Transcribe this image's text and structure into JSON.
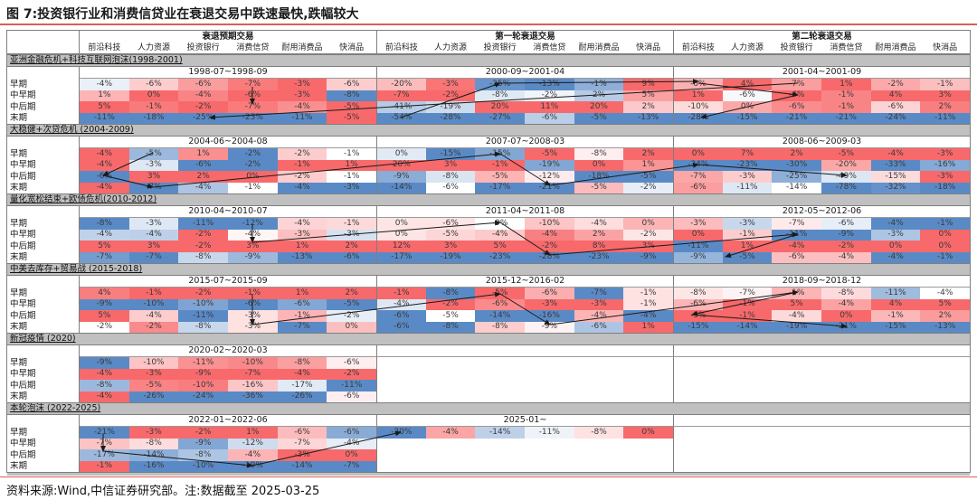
{
  "title": "图 7:投资银行业和消费信贷业在衰退交易中跌速最快,跌幅较大",
  "footer": "资料来源:Wind,中信证券研究部。注:数据截至 2025-03-25",
  "colors": {
    "accent_rule": "#d95f57",
    "heat_positive": "#f8696b",
    "heat_negative": "#5a8ac6",
    "section_band": "#c0c0c0",
    "border": "#7f7f7f"
  },
  "chart_data": {
    "type": "heatmap",
    "title": "图 7:投资银行业和消费信贷业在衰退交易中跌速最快,跌幅较大",
    "value_unit": "%",
    "groups": [
      "衰退预期交易",
      "第一轮衰退交易",
      "第二轮衰退交易"
    ],
    "columns": [
      "前沿科技",
      "人力资源",
      "投资银行",
      "消费信贷",
      "耐用消费品",
      "快消品"
    ],
    "row_labels": [
      "早期",
      "中早期",
      "中后期",
      "末期"
    ],
    "sections": [
      {
        "label": "亚洲金融危机+科技互联网泡沫(1998-2001)",
        "periods": [
          "1998-07~1998-09",
          "2000-09~2001-04",
          "2001-04~2001-09"
        ],
        "rows": [
          [
            [
              -4,
              -6,
              -6,
              -7,
              -3,
              -6
            ],
            [
              -20,
              -3,
              -25,
              -13,
              -1,
              9
            ],
            [
              -6,
              4,
              -7,
              1,
              -2,
              -1
            ]
          ],
          [
            [
              1,
              0,
              -4,
              -6,
              -3,
              -8
            ],
            [
              -7,
              -2,
              -8,
              -2,
              2,
              5
            ],
            [
              1,
              -6,
              -4,
              -1,
              4,
              3
            ]
          ],
          [
            [
              5,
              -1,
              -2,
              -7,
              -4,
              -5
            ],
            [
              -41,
              -19,
              20,
              11,
              20,
              2
            ],
            [
              -10,
              0,
              -6,
              -1,
              -6,
              2
            ]
          ],
          [
            [
              -11,
              -18,
              -25,
              -23,
              -11,
              -5
            ],
            [
              -54,
              -28,
              -27,
              -6,
              -5,
              -13
            ],
            [
              -28,
              -15,
              -21,
              -21,
              -24,
              -11
            ]
          ]
        ]
      },
      {
        "label": "大稳健+次贷危机 (2004-2009)",
        "periods": [
          "2004-06~2004-08",
          "2007-07~2008-03",
          "2008-06~2009-03"
        ],
        "rows": [
          [
            [
              -4,
              -5,
              1,
              -2,
              -2,
              -1
            ],
            [
              0,
              -15,
              -15,
              -5,
              -8,
              2
            ],
            [
              0,
              7,
              2,
              -5,
              -4,
              -3
            ]
          ],
          [
            [
              -4,
              -3,
              -6,
              -2,
              -1,
              1
            ],
            [
              20,
              3,
              -1,
              -19,
              0,
              1
            ],
            [
              -34,
              -23,
              -30,
              -20,
              -33,
              -16
            ]
          ],
          [
            [
              -6,
              3,
              2,
              0,
              -2,
              -1
            ],
            [
              -9,
              -8,
              -5,
              -12,
              -18,
              -5
            ],
            [
              -7,
              -3,
              -25,
              -49,
              -15,
              -3
            ]
          ],
          [
            [
              -4,
              -7,
              -4,
              -1,
              -4,
              -3
            ],
            [
              -14,
              -6,
              -17,
              -21,
              -5,
              -2
            ],
            [
              -6,
              -11,
              -14,
              -78,
              -32,
              -18
            ]
          ]
        ]
      },
      {
        "label": "量化宽松结束+欧债危机(2010-2012)",
        "periods": [
          "2010-04~2010-07",
          "2011-04~2011-08",
          "2012-05~2012-06"
        ],
        "rows": [
          [
            [
              -8,
              -3,
              -11,
              -12,
              -4,
              -1
            ],
            [
              0,
              -6,
              -9,
              -10,
              -4,
              0
            ],
            [
              -3,
              -3,
              -7,
              -6,
              -4,
              -1
            ]
          ],
          [
            [
              -4,
              -4,
              -2,
              -4,
              -3,
              -3
            ],
            [
              0,
              -5,
              -4,
              -4,
              2,
              -2
            ],
            [
              0,
              -1,
              -11,
              -9,
              -3,
              0
            ]
          ],
          [
            [
              5,
              3,
              -2,
              3,
              1,
              2
            ],
            [
              12,
              3,
              5,
              -2,
              8,
              3
            ],
            [
              -11,
              1,
              -4,
              -2,
              0,
              0
            ]
          ],
          [
            [
              -7,
              -7,
              -8,
              -9,
              -13,
              -6
            ],
            [
              -17,
              -19,
              -23,
              -28,
              -23,
              -9
            ],
            [
              -9,
              -5,
              -6,
              -4,
              -4,
              -1
            ]
          ]
        ]
      },
      {
        "label": "中美去库存+贸易战 (2015-2018)",
        "periods": [
          "2015-07~2015-09",
          "2015-12~2016-02",
          "2018-09~2018-12"
        ],
        "rows": [
          [
            [
              4,
              -1,
              -2,
              -1,
              1,
              2
            ],
            [
              -1,
              -8,
              -5,
              -6,
              -7,
              -1
            ],
            [
              -8,
              -7,
              -1,
              -8,
              -11,
              -4
            ]
          ],
          [
            [
              -9,
              -10,
              -10,
              -6,
              -6,
              -5
            ],
            [
              -4,
              -2,
              -6,
              -3,
              -3,
              -1
            ],
            [
              -6,
              -1,
              5,
              -4,
              4,
              5
            ]
          ],
          [
            [
              5,
              -4,
              -11,
              -3,
              -1,
              -2
            ],
            [
              -6,
              -5,
              -14,
              -16,
              -4,
              -4
            ],
            [
              -3,
              -1,
              -4,
              0,
              -1,
              2
            ]
          ],
          [
            [
              -2,
              -2,
              -8,
              -3,
              -7,
              0
            ],
            [
              -6,
              -8,
              -8,
              -9,
              -6,
              1
            ],
            [
              -15,
              -14,
              -19,
              -21,
              -15,
              -13
            ]
          ]
        ]
      },
      {
        "label": "新冠疫情 (2020)",
        "periods": [
          "2020-02~2020-03",
          null,
          null
        ],
        "rows": [
          [
            [
              -9,
              -10,
              -11,
              -10,
              -8,
              -6
            ],
            null,
            null
          ],
          [
            [
              -4,
              -3,
              -9,
              -7,
              -4,
              -2
            ],
            null,
            null
          ],
          [
            [
              -8,
              -5,
              -10,
              -16,
              -17,
              -11
            ],
            null,
            null
          ],
          [
            [
              -4,
              -26,
              -24,
              -36,
              -26,
              -6
            ],
            null,
            null
          ]
        ]
      },
      {
        "label": "本轮泡沫 (2022-2025)",
        "periods": [
          "2022-01~2022-06",
          "2025-01~",
          null
        ],
        "rows": [
          [
            [
              -21,
              -3,
              -2,
              1,
              -6,
              -6
            ],
            [
              -20,
              -4,
              -14,
              -11,
              -8,
              0
            ],
            null
          ],
          [
            [
              -7,
              -8,
              -9,
              -12,
              -7,
              -4
            ],
            null,
            null
          ],
          [
            [
              -17,
              -14,
              -8,
              -4,
              -3,
              0
            ],
            null,
            null
          ],
          [
            [
              -1,
              -16,
              -10,
              -19,
              -14,
              -7
            ],
            null,
            null
          ]
        ]
      }
    ]
  }
}
